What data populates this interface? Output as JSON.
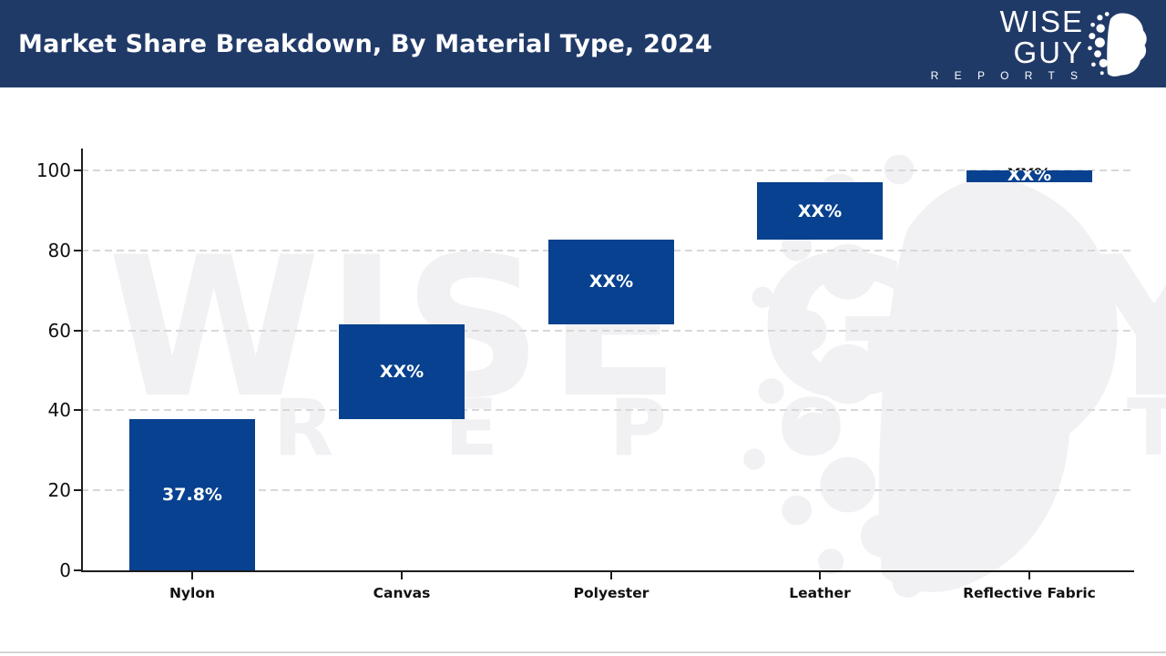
{
  "header": {
    "title": "Market Share Breakdown, By Material Type, 2024",
    "bg_color": "#203a68",
    "logo": {
      "line1": "WISE GUY",
      "line2": "R E P O R T S"
    }
  },
  "watermark": {
    "line1": "WISE GUY",
    "line2": "R E P O R T S"
  },
  "chart_data": {
    "type": "bar",
    "subtype": "waterfall-floating-segments",
    "title": "Market Share Breakdown, By Material Type, 2024",
    "categories": [
      "Nylon",
      "Canvas",
      "Polyester",
      "Leather",
      "Reflective Fabric"
    ],
    "segments": [
      {
        "category": "Nylon",
        "start": 0,
        "end": 37.8,
        "label": "37.8%"
      },
      {
        "category": "Canvas",
        "start": 37.8,
        "end": 61.5,
        "label": "XX%"
      },
      {
        "category": "Polyester",
        "start": 61.5,
        "end": 82.7,
        "label": "XX%"
      },
      {
        "category": "Leather",
        "start": 82.7,
        "end": 97.0,
        "label": "XX%"
      },
      {
        "category": "Reflective Fabric",
        "start": 97.0,
        "end": 100.0,
        "label": "XX%"
      }
    ],
    "y_ticks": [
      0,
      20,
      40,
      60,
      80,
      100
    ],
    "ylim": [
      0,
      105
    ],
    "xlabel": "",
    "ylabel": "",
    "grid": "horizontal-dashed",
    "legend": "none",
    "bar_color": "#07418f",
    "label_color_inside": "#ffffff",
    "label_color_outside": "#111111"
  }
}
